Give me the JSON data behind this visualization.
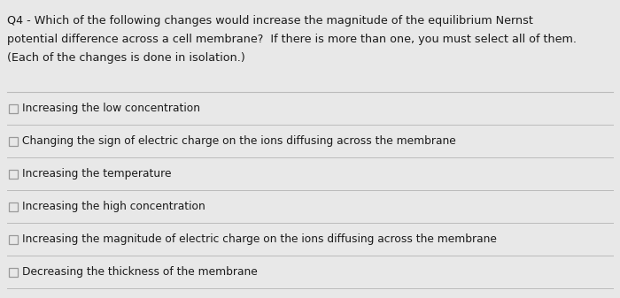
{
  "title_line1": "Q4 - Which of the following changes would increase the magnitude of the equilibrium Nernst",
  "title_line2": "potential difference across a cell membrane?  If there is more than one, you must select all of them.",
  "title_line3": "(Each of the changes is done in isolation.)",
  "options": [
    "Increasing the low concentration",
    "Changing the sign of electric charge on the ions diffusing across the membrane",
    "Increasing the temperature",
    "Increasing the high concentration",
    "Increasing the magnitude of electric charge on the ions diffusing across the membrane",
    "Decreasing the thickness of the membrane"
  ],
  "bg_color": "#e8e8e8",
  "text_color": "#1a1a1a",
  "line_color": "#bbbbbb",
  "checkbox_color": "#999999",
  "title_fontsize": 9.2,
  "option_fontsize": 8.8
}
